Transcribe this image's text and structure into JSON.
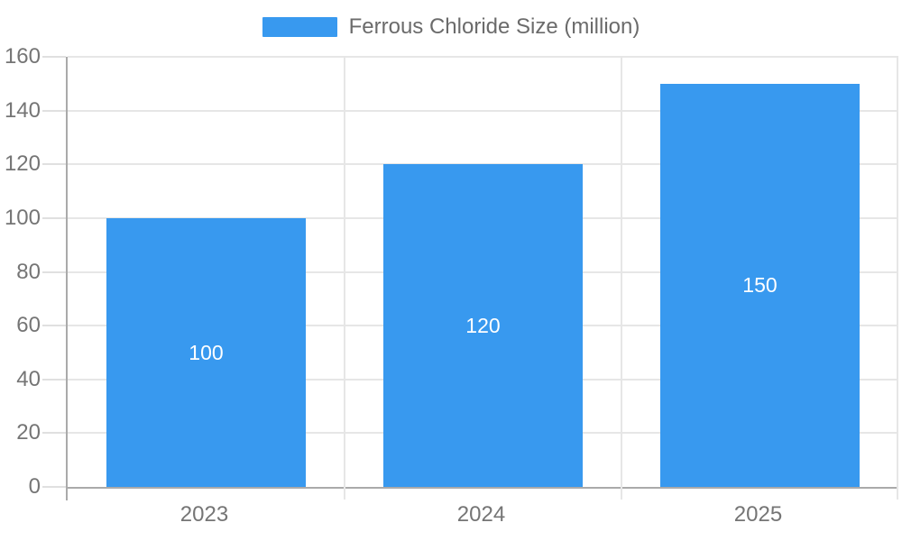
{
  "legend": {
    "label": "Ferrous Chloride Size (million)"
  },
  "chart_data": {
    "type": "bar",
    "title": "",
    "xlabel": "",
    "ylabel": "",
    "categories": [
      "2023",
      "2024",
      "2025"
    ],
    "series": [
      {
        "name": "Ferrous Chloride Size (million)",
        "values": [
          100,
          120,
          150
        ]
      }
    ],
    "bar_labels": [
      "100",
      "120",
      "150"
    ],
    "ylim": [
      0,
      160
    ],
    "ytick_step": 20,
    "ytick_labels": [
      "0",
      "20",
      "40",
      "60",
      "80",
      "100",
      "120",
      "140",
      "160"
    ],
    "grid": true,
    "legend_position": "top-center",
    "colors": {
      "bar": "#3899EF",
      "bar_label": "#ffffff",
      "axis_line": "#aaaaaa",
      "gridline": "#e6e6e6",
      "tick_label": "#757575",
      "legend_text": "#6b6b6b",
      "background": "#ffffff"
    }
  }
}
